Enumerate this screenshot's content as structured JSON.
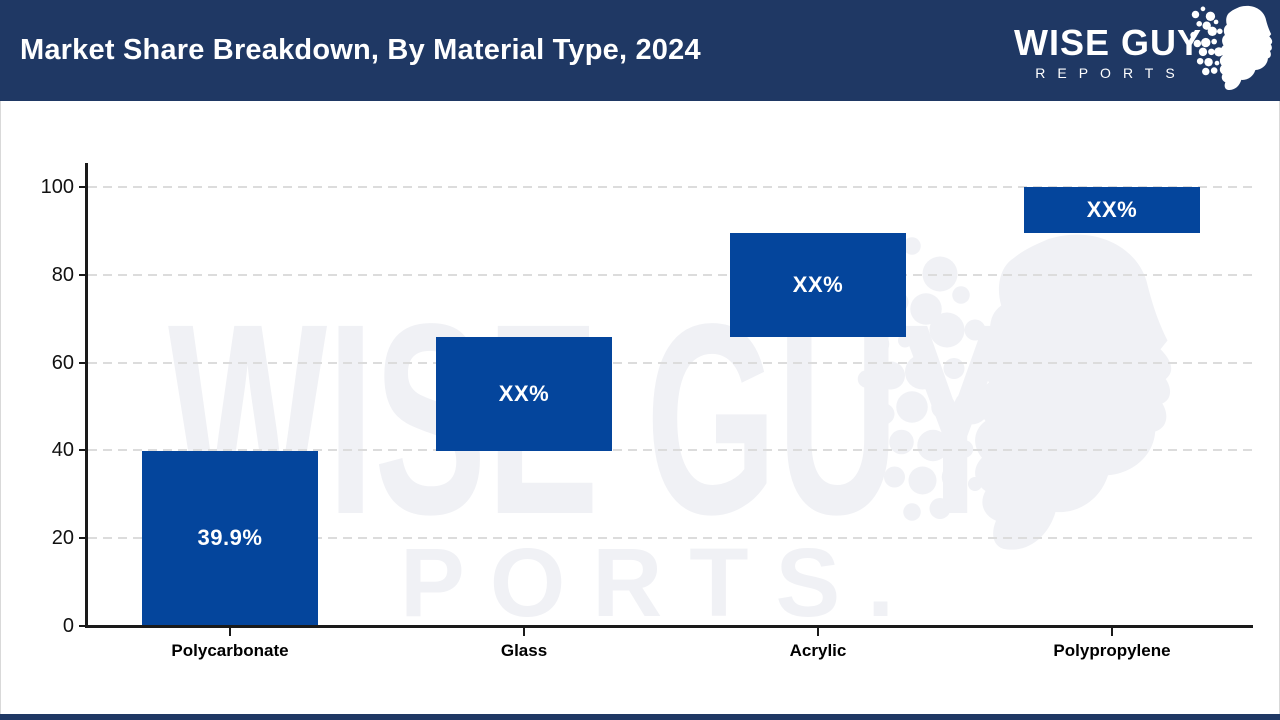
{
  "header": {
    "title": "Market Share Breakdown, By Material Type, 2024",
    "logo": {
      "wordmark": "WISE GUY",
      "subtext": "REPORTS"
    }
  },
  "watermark": {
    "line1": "WISE GUY.",
    "line2": "P O R T S ."
  },
  "chart_data": {
    "type": "bar",
    "subtype": "waterfall-segments",
    "title": "Market Share Breakdown, By Material Type, 2024",
    "categories": [
      "Polycarbonate",
      "Glass",
      "Acrylic",
      "Polypropylene"
    ],
    "segments": [
      {
        "category": "Polycarbonate",
        "start": 0,
        "end": 39.9,
        "label": "39.9%"
      },
      {
        "category": "Glass",
        "start": 39.9,
        "end": 65.9,
        "label": "XX%"
      },
      {
        "category": "Acrylic",
        "start": 65.9,
        "end": 89.5,
        "label": "XX%"
      },
      {
        "category": "Polypropylene",
        "start": 89.5,
        "end": 100,
        "label": "XX%"
      }
    ],
    "y_ticks": [
      0,
      20,
      40,
      60,
      80,
      100
    ],
    "ylim": [
      0,
      100
    ],
    "xlabel": "",
    "ylabel": "",
    "grid": "horizontal-dashed",
    "legend": "none",
    "bar_color": "#04459C",
    "bar_label_color": "#FFFFFF"
  },
  "colors": {
    "header_bg": "#1F3864",
    "footer_bg": "#1F3864",
    "title_text": "#FFFFFF",
    "bar": "#04459C",
    "axis": "#1A1A1A",
    "gridline": "#DCDCDC",
    "watermark": "#F0F1F5",
    "background": "#FFFFFF"
  }
}
